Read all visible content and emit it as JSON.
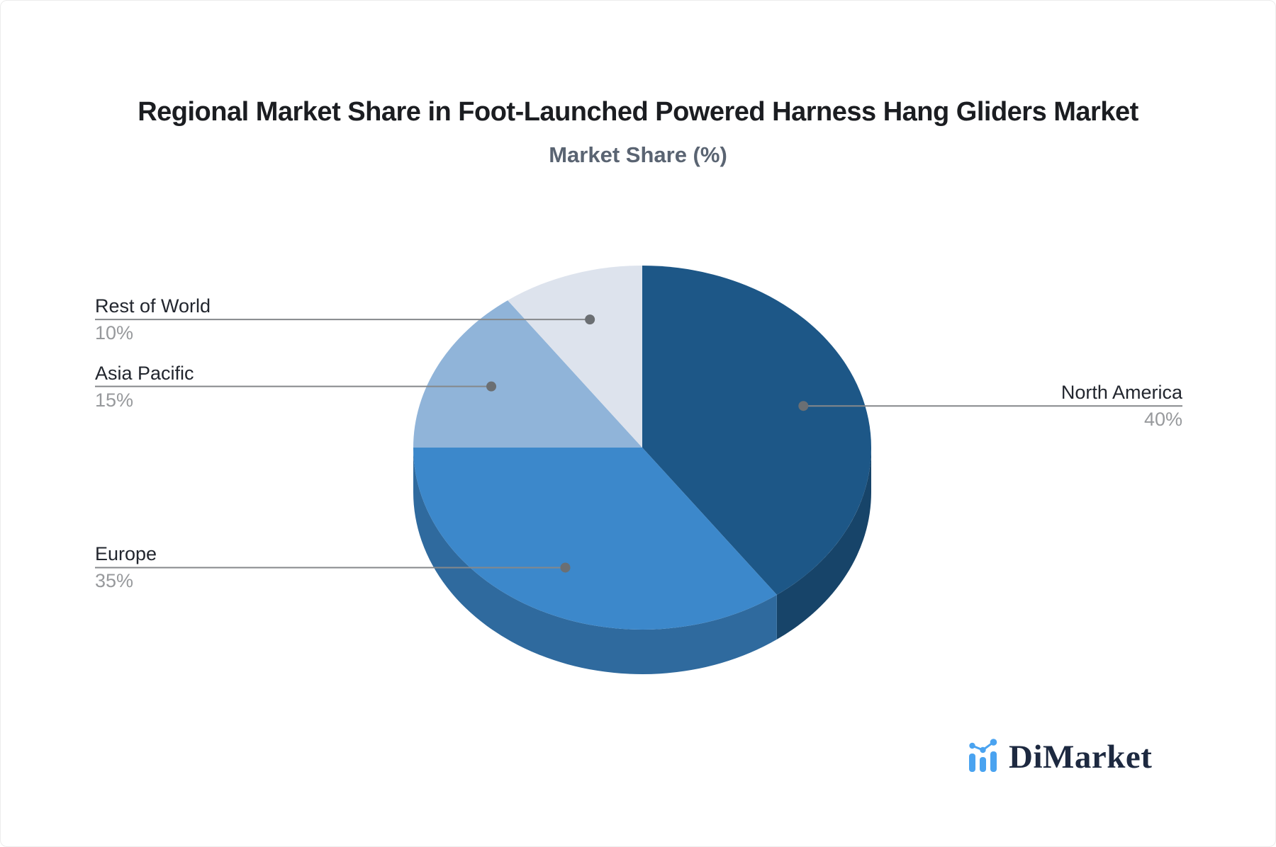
{
  "header": {
    "title": "Regional Market Share in Foot-Launched Powered Harness Hang Gliders Market",
    "subtitle": "Market Share (%)"
  },
  "chart_data": {
    "type": "pie",
    "title": "Regional Market Share in Foot-Launched Powered Harness Hang Gliders Market",
    "subtitle": "Market Share (%)",
    "unit": "%",
    "effect": "3d",
    "start_angle": "12 o'clock",
    "direction": "clockwise",
    "slices": [
      {
        "label": "North America",
        "value": 40,
        "pct_label": "40%",
        "color": "#1d5787"
      },
      {
        "label": "Europe",
        "value": 35,
        "pct_label": "35%",
        "color": "#3c88cb"
      },
      {
        "label": "Asia Pacific",
        "value": 15,
        "pct_label": "15%",
        "color": "#90b4d9"
      },
      {
        "label": "Rest of World",
        "value": 10,
        "pct_label": "10%",
        "color": "#dde3ed"
      }
    ],
    "legend_position": "callout-labels",
    "label_text_color": "#22262e",
    "pct_text_color": "#97999c",
    "callout_line_color": "#85888b",
    "callout_dot_color": "#6b6f73"
  },
  "branding": {
    "logo_text": "DiMarket",
    "logo_text_color": "#1d2940",
    "logo_icon_color": "#4aa3f0"
  }
}
